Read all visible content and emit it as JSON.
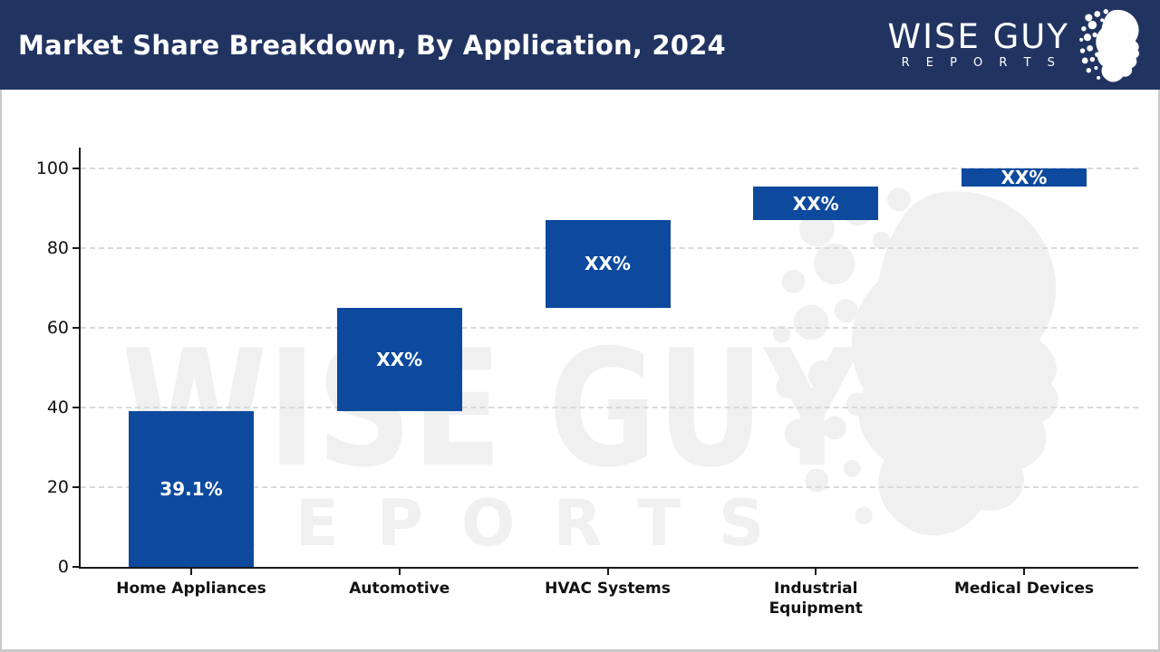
{
  "header": {
    "title": "Market Share Breakdown, By Application, 2024",
    "logo_line1": "WISE GUY",
    "logo_line2": "R E P O R T S"
  },
  "watermark": {
    "line1": "WISE GUY",
    "line2": "REPORTS"
  },
  "chart_data": {
    "type": "bar",
    "subtype": "waterfall",
    "title": "Market Share Breakdown, By Application, 2024",
    "categories": [
      "Home Appliances",
      "Automotive",
      "HVAC Systems",
      "Industrial\nEquipment",
      "Medical Devices"
    ],
    "bars": [
      {
        "category": "Home Appliances",
        "start": 0,
        "end": 39.1,
        "label": "39.1%"
      },
      {
        "category": "Automotive",
        "start": 39.1,
        "end": 65.1,
        "label": "XX%"
      },
      {
        "category": "HVAC Systems",
        "start": 65.1,
        "end": 87.0,
        "label": "XX%"
      },
      {
        "category": "Industrial Equipment",
        "start": 87.0,
        "end": 95.4,
        "label": "XX%"
      },
      {
        "category": "Medical Devices",
        "start": 95.4,
        "end": 100.0,
        "label": "XX%"
      }
    ],
    "yticks": [
      0,
      20,
      40,
      60,
      80,
      100
    ],
    "ylim": [
      0,
      105
    ],
    "xlabel": "",
    "ylabel": "",
    "legend": "none",
    "grid": "horizontal-dashed",
    "bar_color": "#0d4a9e",
    "bar_label_color": "#ffffff",
    "header_bg": "#213461",
    "gridline_color": "#d9d9d9"
  }
}
